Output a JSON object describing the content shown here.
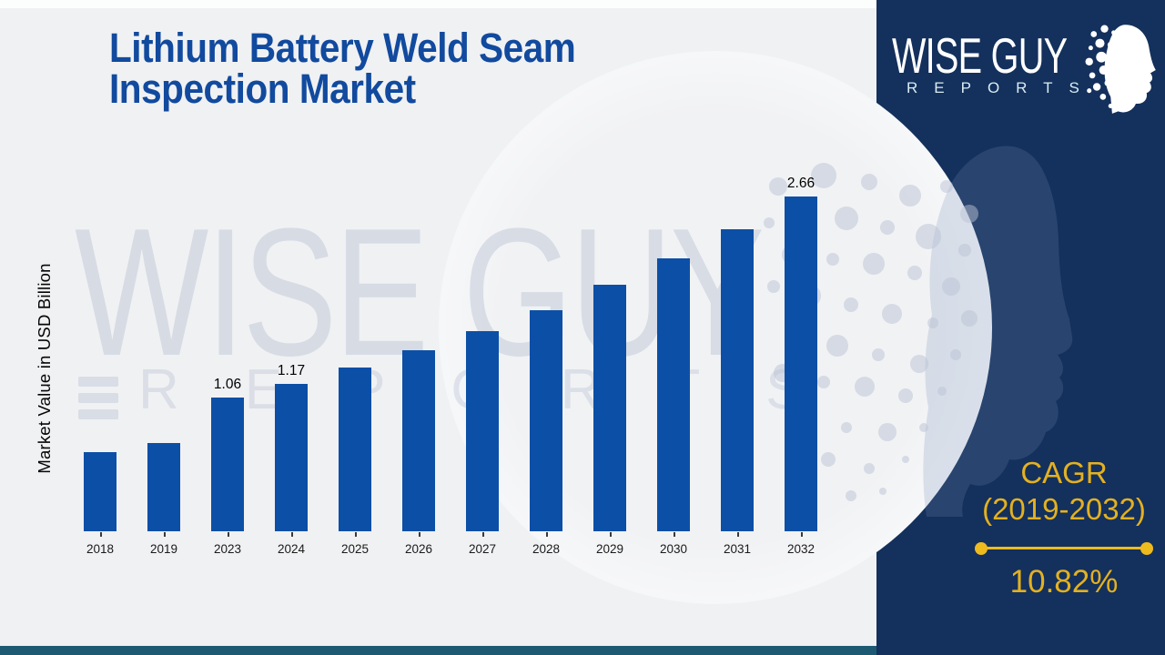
{
  "title": {
    "line1": "Lithium Battery Weld Seam",
    "line2": "Inspection Market"
  },
  "watermark": {
    "line1": "WISE GUY",
    "line2": "REPORTS"
  },
  "logo": {
    "name": "WISE GUY",
    "sub": "REPORTS",
    "face_icon": "head-profile-dots-icon"
  },
  "cagr": {
    "label": "CAGR",
    "range": "(2019-2032)",
    "value": "10.82%"
  },
  "chart_data": {
    "type": "bar",
    "title": "Lithium Battery Weld Seam Inspection Market",
    "categories": [
      "2018",
      "2019",
      "2023",
      "2024",
      "2025",
      "2026",
      "2027",
      "2028",
      "2029",
      "2030",
      "2031",
      "2032"
    ],
    "values": [
      0.63,
      0.7,
      1.06,
      1.17,
      1.3,
      1.44,
      1.59,
      1.76,
      1.96,
      2.17,
      2.4,
      2.66
    ],
    "data_labels": [
      "",
      "",
      "1.06",
      "1.17",
      "",
      "",
      "",
      "",
      "",
      "",
      "",
      "2.66"
    ],
    "xlabel": "",
    "ylabel": "Market Value in USD Billion",
    "ylim": [
      0,
      2.85
    ],
    "grid": false,
    "legend": false,
    "bar_color": "#0c4fa6"
  },
  "colors": {
    "background": "#f0f1f3",
    "navy_panel": "#14305c",
    "bar_blue": "#0c4fa6",
    "title_blue": "#114a9e",
    "accent_gold": "#e3b121",
    "teal_strip": "#1d5a72",
    "watermark_gray": "#dcdfe8"
  }
}
